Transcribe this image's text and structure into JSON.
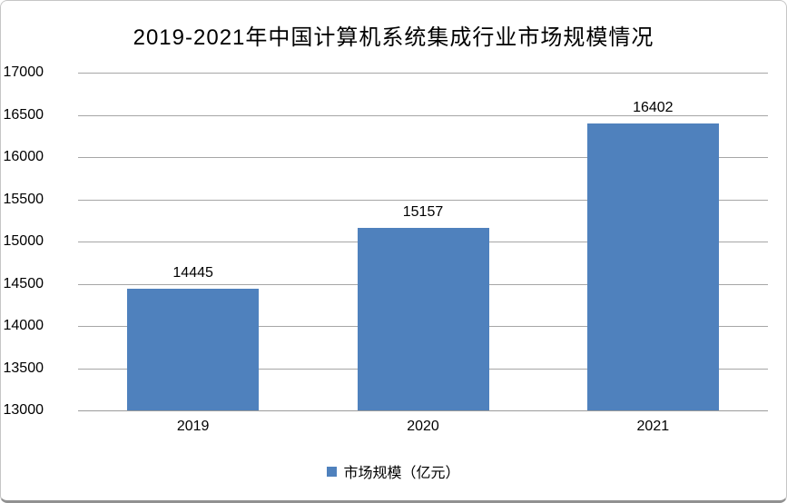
{
  "title": "2019-2021年中国计算机系统集成行业市场规模情况",
  "legend": {
    "label": "市场规模（亿元）",
    "swatch_icon": "legend-square-swatch"
  },
  "colors": {
    "bar": "#4f81bd",
    "gridline": "#a6a6a6",
    "text": "#000000",
    "background": "#ffffff",
    "frame_border": "#c6c6c6",
    "frame_border_bottom": "#919191"
  },
  "chart_data": {
    "type": "bar",
    "title": "2019-2021年中国计算机系统集成行业市场规模情况",
    "categories": [
      "2019",
      "2020",
      "2021"
    ],
    "series": [
      {
        "name": "市场规模（亿元）",
        "values": [
          14445,
          15157,
          16402
        ]
      }
    ],
    "data_labels": [
      "14445",
      "15157",
      "16402"
    ],
    "xlabel": "",
    "ylabel": "",
    "ylim": [
      13000,
      17000
    ],
    "ytick_step": 500,
    "yticks": [
      13000,
      13500,
      14000,
      14500,
      15000,
      15500,
      16000,
      16500,
      17000
    ],
    "grid": true,
    "legend_position": "bottom",
    "bar_color": "#4f81bd"
  }
}
